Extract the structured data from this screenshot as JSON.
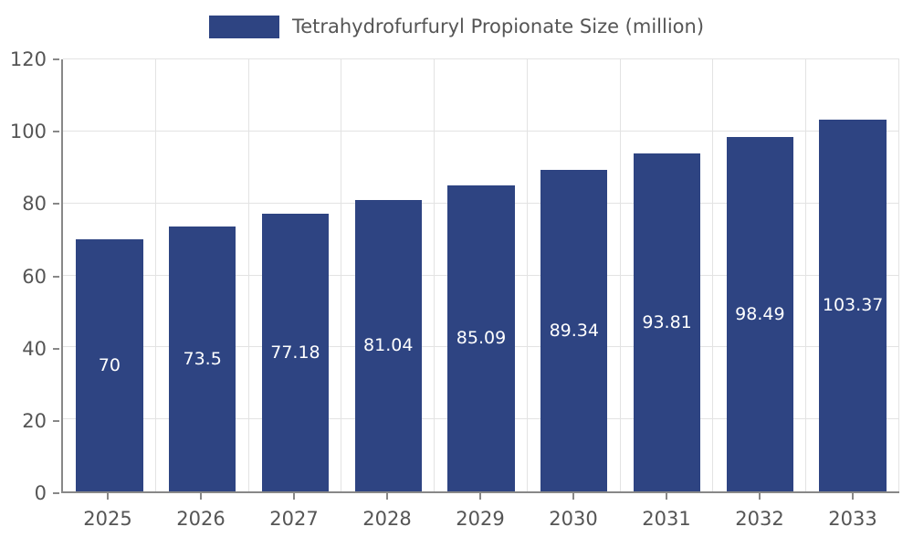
{
  "chart_data": {
    "type": "bar",
    "title": "",
    "legend_label": "Tetrahydrofurfuryl Propionate Size (million)",
    "legend_position": "top",
    "categories": [
      "2025",
      "2026",
      "2027",
      "2028",
      "2029",
      "2030",
      "2031",
      "2032",
      "2033"
    ],
    "values": [
      70,
      73.5,
      77.18,
      81.04,
      85.09,
      89.34,
      93.81,
      98.49,
      103.37
    ],
    "value_labels": [
      "70",
      "73.5",
      "77.18",
      "81.04",
      "85.09",
      "89.34",
      "93.81",
      "98.49",
      "103.37"
    ],
    "xlabel": "",
    "ylabel": "",
    "ylim": [
      0,
      120
    ],
    "yticks": [
      0,
      20,
      40,
      60,
      80,
      100,
      120
    ],
    "grid": true,
    "colors": {
      "bar": "#2e4482",
      "bar_label_text": "#ffffff",
      "tick_text": "#555555",
      "axis_line": "#888888",
      "gridline": "#e3e3e3",
      "background": "#ffffff"
    }
  }
}
